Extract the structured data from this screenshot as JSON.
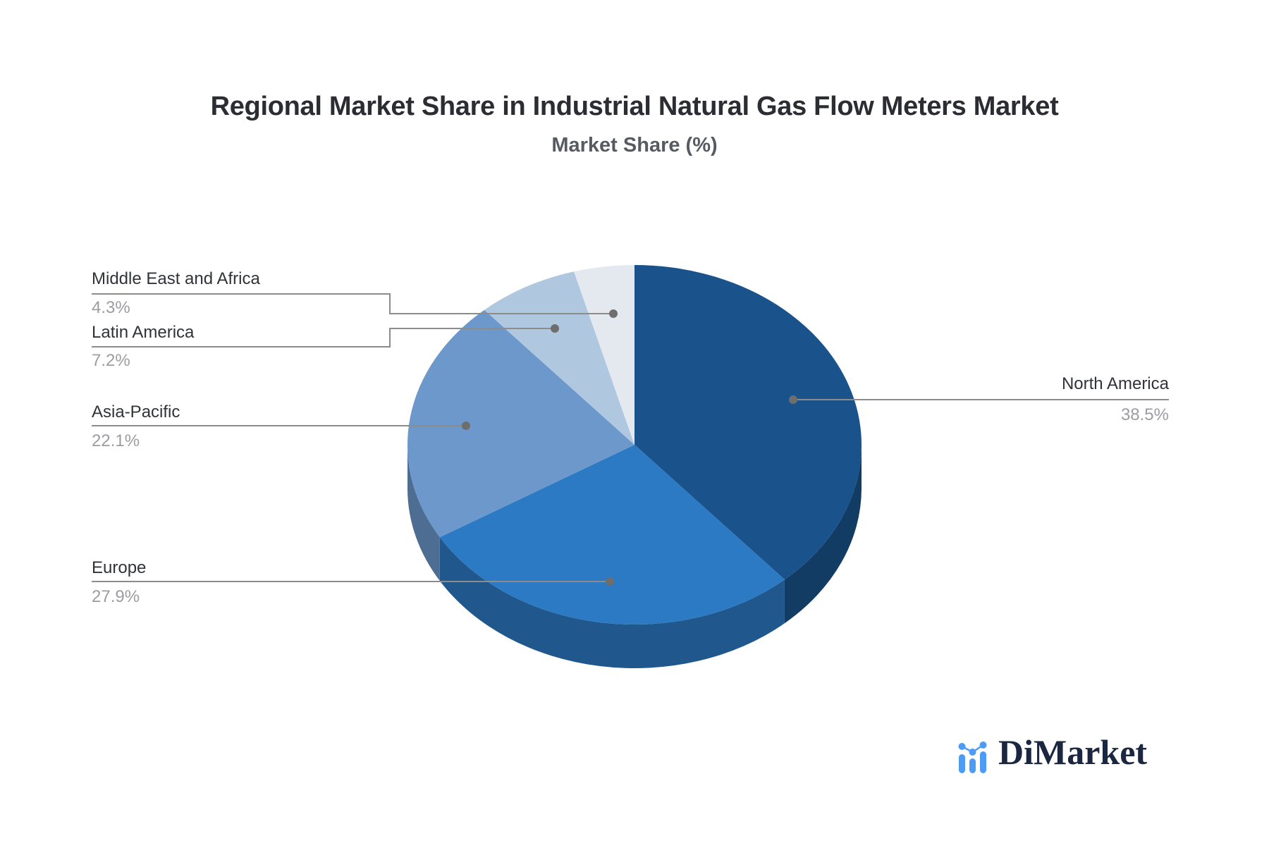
{
  "chart_data": {
    "type": "pie",
    "style": "3d",
    "title": "Regional Market Share in Industrial Natural Gas Flow Meters Market",
    "subtitle": "Market Share (%)",
    "unit": "%",
    "start_angle_deg": 0,
    "direction": "clockwise",
    "legend": "none",
    "label_style": "name above percent, gray connector lines with end dots",
    "series": [
      {
        "name": "North America",
        "value": 38.5,
        "color": "#1a538c"
      },
      {
        "name": "Europe",
        "value": 27.9,
        "color": "#2d7ac4"
      },
      {
        "name": "Asia-Pacific",
        "value": 22.1,
        "color": "#6d98cb"
      },
      {
        "name": "Latin America",
        "value": 7.2,
        "color": "#b0c7e0"
      },
      {
        "name": "Middle East and Africa",
        "value": 4.3,
        "color": "#e4e9f0"
      }
    ]
  },
  "colors": {
    "background": "#ffffff",
    "title_text": "#2b2d33",
    "subtitle_text": "#565b63",
    "label_name_text": "#303338",
    "label_pct_text": "#9c9ca3",
    "connector_line": "#8c8c8c",
    "connector_dot": "#6e6e6e"
  },
  "logo": {
    "text": "DiMarket",
    "icon": "bar-line-chart-icon",
    "icon_color": "#4c9bf5",
    "text_color": "#1b2740"
  }
}
